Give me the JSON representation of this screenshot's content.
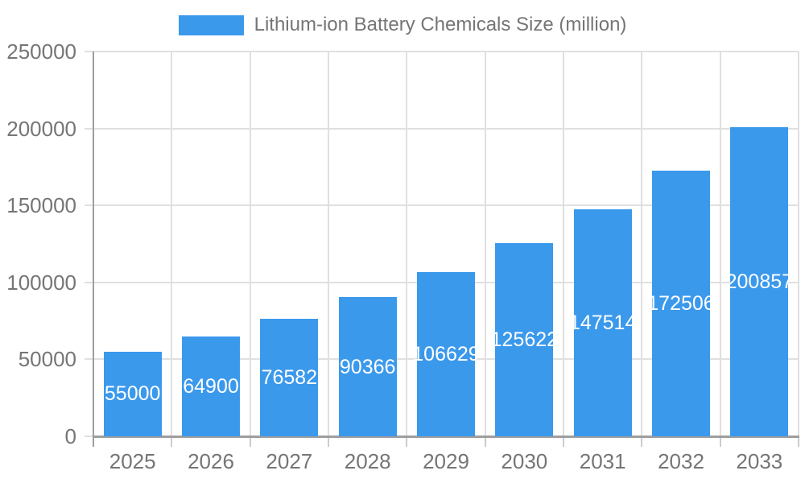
{
  "chart_data": {
    "type": "bar",
    "title": "Lithium-ion Battery Chemicals Size (million)",
    "legend_entries": [
      "Lithium-ion Battery Chemicals Size (million)"
    ],
    "legend_position": "top-center",
    "categories": [
      "2025",
      "2026",
      "2027",
      "2028",
      "2029",
      "2030",
      "2031",
      "2032",
      "2033"
    ],
    "series": [
      {
        "name": "Lithium-ion Battery Chemicals Size (million)",
        "values": [
          55000,
          64900,
          76582,
          90366,
          106629,
          125622,
          147514,
          172506,
          200857
        ]
      }
    ],
    "value_labels_shown": true,
    "xlabel": "",
    "ylabel": "",
    "ylim": [
      0,
      250000
    ],
    "yticks": [
      0,
      50000,
      100000,
      150000,
      200000,
      250000
    ],
    "grid": "horizontal and vertical light gridlines",
    "colors": {
      "bar": "#3b99ec",
      "text": "#757575",
      "grid": "#e0e0e0",
      "axis": "#9e9e9e",
      "minor_tick": "#cccccc",
      "value_label": "#ffffff",
      "background": "#ffffff"
    }
  }
}
